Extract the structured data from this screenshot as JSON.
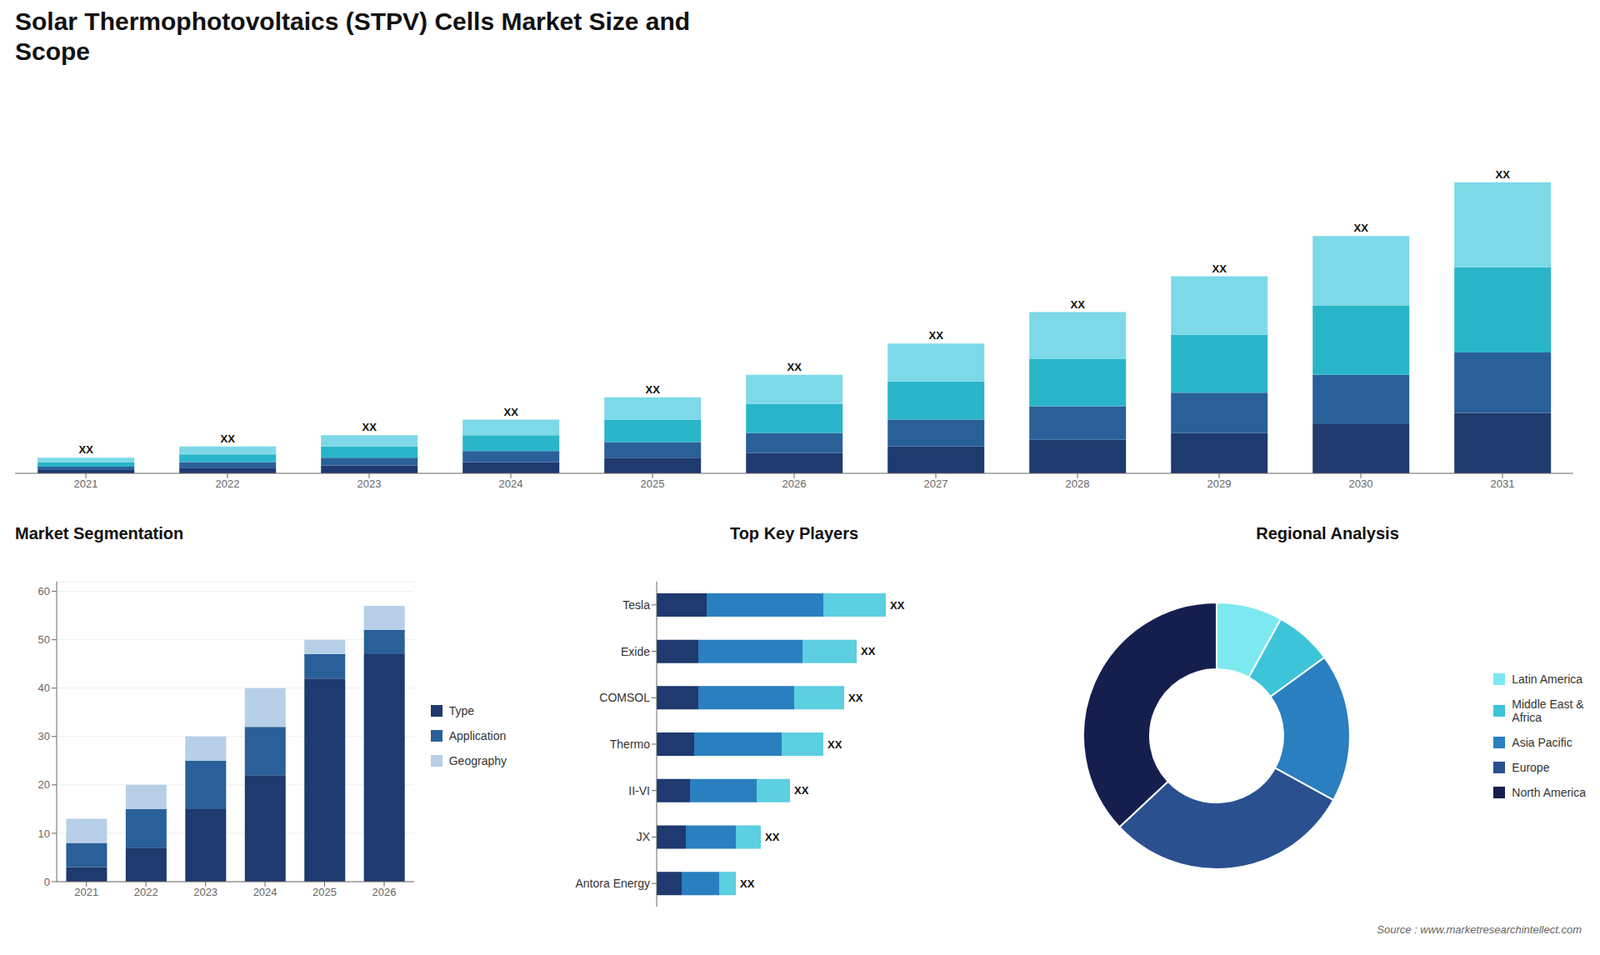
{
  "chart_data": [
    {
      "type": "bar",
      "title": "Solar Thermophotovoltaics (STPV) Cells Market Size and\nScope",
      "stacked": true,
      "categories": [
        "2021",
        "2022",
        "2023",
        "2024",
        "2025",
        "2026",
        "2027",
        "2028",
        "2029",
        "2030",
        "2031"
      ],
      "series": [
        {
          "color": "#1e3a6e",
          "values": [
            1.5,
            2.5,
            3.5,
            5,
            7,
            9,
            12,
            15,
            18,
            22,
            27
          ]
        },
        {
          "color": "#2a6099",
          "values": [
            1.5,
            2.5,
            3.5,
            5,
            7,
            9,
            12,
            15,
            18,
            22,
            27
          ]
        },
        {
          "color": "#29b5c8",
          "values": [
            2,
            3.5,
            5,
            7,
            10,
            13,
            17,
            21,
            26,
            31,
            38
          ]
        },
        {
          "color": "#7dd9e8",
          "values": [
            2,
            3.5,
            5,
            7,
            10,
            13,
            17,
            21,
            26,
            31,
            38
          ],
          "value_labels": [
            "XX",
            "XX",
            "XX",
            "XX",
            "XX",
            "XX",
            "XX",
            "XX",
            "XX",
            "XX",
            "XX"
          ]
        }
      ],
      "ylim": [
        0,
        160
      ],
      "yticks": [
        0,
        40,
        80,
        120,
        160
      ],
      "tick_labels": "x",
      "grid": false
    },
    {
      "type": "bar",
      "title": "Market Segmentation",
      "stacked": true,
      "categories": [
        "2021",
        "2022",
        "2023",
        "2024",
        "2025",
        "2026"
      ],
      "series": [
        {
          "name": "Type",
          "color": "#1e3a6e",
          "values": [
            3,
            7,
            15,
            22,
            42,
            47
          ]
        },
        {
          "name": "Application",
          "color": "#2a6099",
          "values": [
            5,
            8,
            10,
            10,
            5,
            5
          ]
        },
        {
          "name": "Geography",
          "color": "#b8cfe8",
          "values": [
            5,
            5,
            5,
            8,
            3,
            5
          ]
        }
      ],
      "ylim": [
        0,
        62
      ],
      "yticks": [
        0,
        10,
        20,
        30,
        40,
        50,
        60
      ],
      "grid": true,
      "legend": "right"
    },
    {
      "type": "bar",
      "title": "Top Key Players",
      "stacked": true,
      "orientation": "horizontal",
      "categories": [
        "Tesla",
        "Exide",
        "COMSOL",
        "Thermo",
        "II-VI",
        "JX",
        "Antora Energy"
      ],
      "series": [
        {
          "color": "#1e3a6e",
          "values": [
            0.12,
            0.1,
            0.1,
            0.09,
            0.08,
            0.07,
            0.06
          ]
        },
        {
          "color": "#2a7fc0",
          "values": [
            0.28,
            0.25,
            0.23,
            0.21,
            0.16,
            0.12,
            0.09
          ]
        },
        {
          "color": "#5ccfe0",
          "values": [
            0.15,
            0.13,
            0.12,
            0.1,
            0.08,
            0.06,
            0.04
          ],
          "value_labels": [
            "XX",
            "XX",
            "XX",
            "XX",
            "XX",
            "XX",
            "XX"
          ]
        }
      ],
      "xlim": [
        0,
        0.8
      ],
      "xticks": [
        0,
        0.2,
        0.4,
        0.6,
        0.8
      ],
      "tick_labels": "y",
      "grid": false
    },
    {
      "type": "pie",
      "title": "Regional Analysis",
      "categories": [
        "Latin America",
        "Middle East &\nAfrica",
        "Asia Pacific",
        "Europe",
        "North America"
      ],
      "values": [
        8,
        7,
        18,
        30,
        37
      ],
      "colors": [
        "#7de8f0",
        "#3dc4d8",
        "#2a7fc0",
        "#2a5090",
        "#151f4e"
      ],
      "legend": "right",
      "annotations": [
        "Source : www.marketresearchintellect.com"
      ]
    }
  ]
}
